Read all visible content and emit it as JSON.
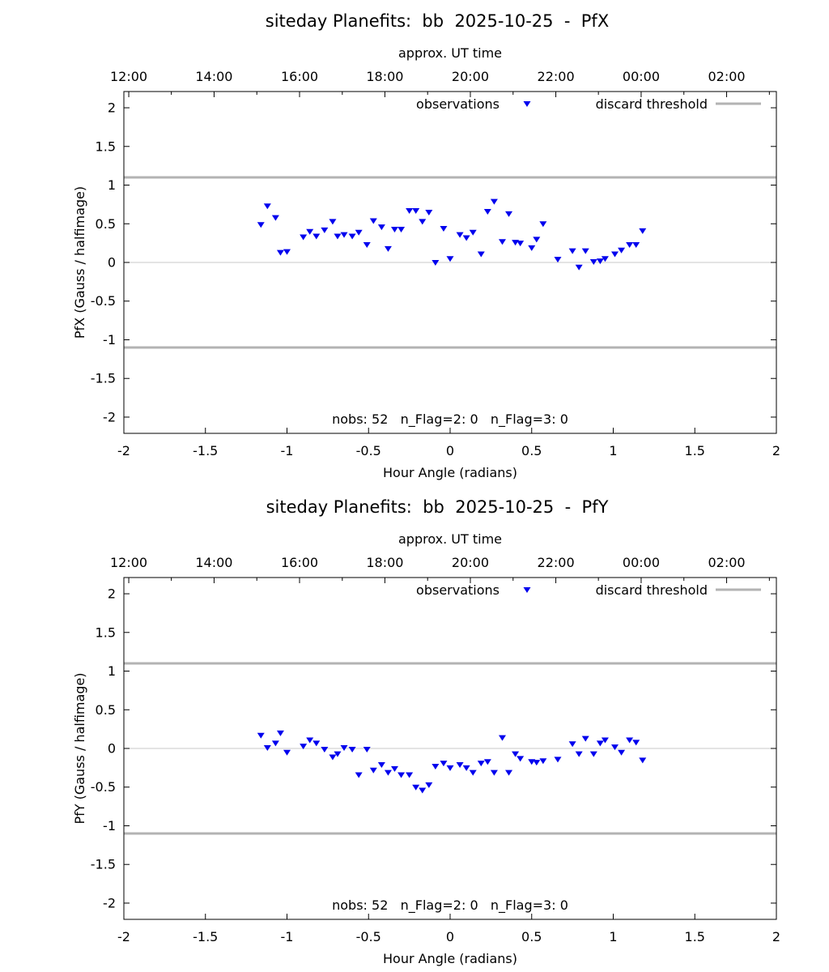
{
  "page": {
    "background": "#ffffff"
  },
  "colors": {
    "marker": "#0000ee",
    "threshold_line": "#b3b3b3",
    "zero_line": "#c8c8c8",
    "frame": "#000000",
    "text": "#000000"
  },
  "chart_data": [
    {
      "type": "scatter",
      "title": "siteday Planefits:  bb  2025-10-25  -  PfX",
      "x2label": "approx. UT time",
      "xlabel": "Hour Angle (radians)",
      "ylabel": "PfX (Gauss / halfimage)",
      "footer": "nobs: 52   n_Flag=2: 0   n_Flag=3: 0",
      "legend": {
        "observations_label": "observations",
        "threshold_label": "discard threshold",
        "position": "top-right-inside"
      },
      "grid": false,
      "xlim": [
        -2,
        2
      ],
      "ylim": [
        -2.21,
        2.21
      ],
      "xticks": [
        -2,
        -1.5,
        -1,
        -0.5,
        0,
        0.5,
        1,
        1.5,
        2
      ],
      "yticks": [
        2,
        1.5,
        1,
        0.5,
        0,
        -0.5,
        -1,
        -1.5,
        -2
      ],
      "x2ticks": [
        {
          "label": "12:00",
          "x": -1.97
        },
        {
          "label": "14:00",
          "x": -1.447
        },
        {
          "label": "16:00",
          "x": -0.923
        },
        {
          "label": "18:00",
          "x": -0.4
        },
        {
          "label": "20:00",
          "x": 0.124
        },
        {
          "label": "22:00",
          "x": 0.648
        },
        {
          "label": "00:00",
          "x": 1.171
        },
        {
          "label": "02:00",
          "x": 1.695
        }
      ],
      "x2minorticks": [
        -1.709,
        -1.185,
        -0.661,
        -0.138,
        0.386,
        0.909,
        1.433,
        1.957
      ],
      "discard_thresholds": [
        1.1,
        -1.1
      ],
      "zero_line": 0,
      "series": [
        {
          "name": "observations",
          "marker": "triangle-down",
          "color": "#0000ee",
          "x": [
            -1.16,
            -1.12,
            -1.07,
            -1.04,
            -1.0,
            -0.9,
            -0.86,
            -0.82,
            -0.77,
            -0.72,
            -0.69,
            -0.65,
            -0.6,
            -0.56,
            -0.51,
            -0.47,
            -0.42,
            -0.38,
            -0.34,
            -0.3,
            -0.25,
            -0.21,
            -0.17,
            -0.13,
            -0.09,
            -0.04,
            0.0,
            0.06,
            0.1,
            0.14,
            0.19,
            0.23,
            0.27,
            0.32,
            0.36,
            0.4,
            0.43,
            0.5,
            0.53,
            0.57,
            0.66,
            0.75,
            0.79,
            0.83,
            0.88,
            0.92,
            0.95,
            1.01,
            1.05,
            1.1,
            1.14,
            1.18
          ],
          "y": [
            0.49,
            0.73,
            0.58,
            0.13,
            0.14,
            0.33,
            0.4,
            0.34,
            0.42,
            0.53,
            0.34,
            0.36,
            0.34,
            0.39,
            0.23,
            0.54,
            0.46,
            0.18,
            0.43,
            0.43,
            0.67,
            0.67,
            0.53,
            0.65,
            0.0,
            0.44,
            0.05,
            0.36,
            0.32,
            0.39,
            0.11,
            0.66,
            0.79,
            0.27,
            0.63,
            0.26,
            0.25,
            0.19,
            0.3,
            0.5,
            0.04,
            0.15,
            -0.06,
            0.15,
            0.01,
            0.02,
            0.05,
            0.11,
            0.16,
            0.23,
            0.23,
            0.41
          ]
        }
      ]
    },
    {
      "type": "scatter",
      "title": "siteday Planefits:  bb  2025-10-25  -  PfY",
      "x2label": "approx. UT time",
      "xlabel": "Hour Angle (radians)",
      "ylabel": "PfY (Gauss / halfimage)",
      "footer": "nobs: 52   n_Flag=2: 0   n_Flag=3: 0",
      "legend": {
        "observations_label": "observations",
        "threshold_label": "discard threshold",
        "position": "top-right-inside"
      },
      "grid": false,
      "xlim": [
        -2,
        2
      ],
      "ylim": [
        -2.21,
        2.21
      ],
      "xticks": [
        -2,
        -1.5,
        -1,
        -0.5,
        0,
        0.5,
        1,
        1.5,
        2
      ],
      "yticks": [
        2,
        1.5,
        1,
        0.5,
        0,
        -0.5,
        -1,
        -1.5,
        -2
      ],
      "x2ticks": [
        {
          "label": "12:00",
          "x": -1.97
        },
        {
          "label": "14:00",
          "x": -1.447
        },
        {
          "label": "16:00",
          "x": -0.923
        },
        {
          "label": "18:00",
          "x": -0.4
        },
        {
          "label": "20:00",
          "x": 0.124
        },
        {
          "label": "22:00",
          "x": 0.648
        },
        {
          "label": "00:00",
          "x": 1.171
        },
        {
          "label": "02:00",
          "x": 1.695
        }
      ],
      "x2minorticks": [
        -1.709,
        -1.185,
        -0.661,
        -0.138,
        0.386,
        0.909,
        1.433,
        1.957
      ],
      "discard_thresholds": [
        1.1,
        -1.1
      ],
      "zero_line": 0,
      "series": [
        {
          "name": "observations",
          "marker": "triangle-down",
          "color": "#0000ee",
          "x": [
            -1.16,
            -1.12,
            -1.07,
            -1.04,
            -1.0,
            -0.9,
            -0.86,
            -0.82,
            -0.77,
            -0.72,
            -0.69,
            -0.65,
            -0.6,
            -0.56,
            -0.51,
            -0.47,
            -0.42,
            -0.38,
            -0.34,
            -0.3,
            -0.25,
            -0.21,
            -0.17,
            -0.13,
            -0.09,
            -0.04,
            0.0,
            0.06,
            0.1,
            0.14,
            0.19,
            0.23,
            0.27,
            0.32,
            0.36,
            0.4,
            0.43,
            0.5,
            0.53,
            0.57,
            0.66,
            0.75,
            0.79,
            0.83,
            0.88,
            0.92,
            0.95,
            1.01,
            1.05,
            1.1,
            1.14,
            1.18
          ],
          "y": [
            0.17,
            0.01,
            0.07,
            0.2,
            -0.05,
            0.03,
            0.11,
            0.07,
            -0.01,
            -0.11,
            -0.07,
            0.01,
            -0.01,
            -0.34,
            -0.01,
            -0.28,
            -0.21,
            -0.31,
            -0.26,
            -0.34,
            -0.34,
            -0.5,
            -0.54,
            -0.47,
            -0.23,
            -0.19,
            -0.25,
            -0.21,
            -0.25,
            -0.31,
            -0.19,
            -0.17,
            -0.31,
            0.14,
            -0.31,
            -0.07,
            -0.13,
            -0.17,
            -0.18,
            -0.16,
            -0.14,
            0.06,
            -0.07,
            0.13,
            -0.07,
            0.07,
            0.11,
            0.02,
            -0.05,
            0.11,
            0.08,
            -0.15
          ]
        }
      ]
    }
  ]
}
